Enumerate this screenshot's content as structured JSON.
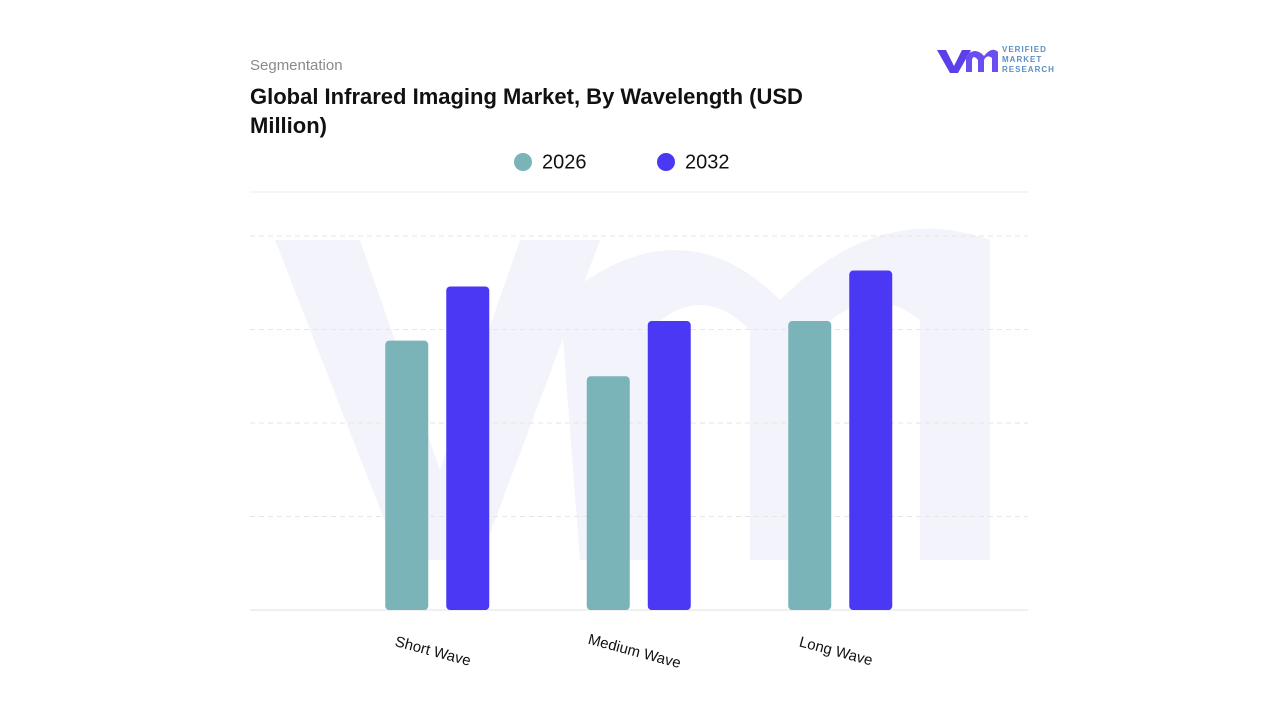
{
  "chart_data": {
    "type": "bar",
    "kicker": "Segmentation",
    "title": "Global Infrared Imaging Market, By Wavelength (USD Million)",
    "logo": [
      "VERIFIED",
      "MARKET",
      "RESEARCH"
    ],
    "categories": [
      "Short Wave",
      "Medium Wave",
      "Long Wave"
    ],
    "series": [
      {
        "name": "2026",
        "color": "#7ab3b8",
        "values": [
          2.88,
          2.5,
          3.09
        ]
      },
      {
        "name": "2032",
        "color": "#4b38f5",
        "values": [
          3.46,
          3.09,
          3.63
        ]
      }
    ],
    "ylim": [
      0,
      4.47
    ],
    "yticks": [
      0,
      1,
      2,
      3,
      4
    ],
    "grid": true
  }
}
